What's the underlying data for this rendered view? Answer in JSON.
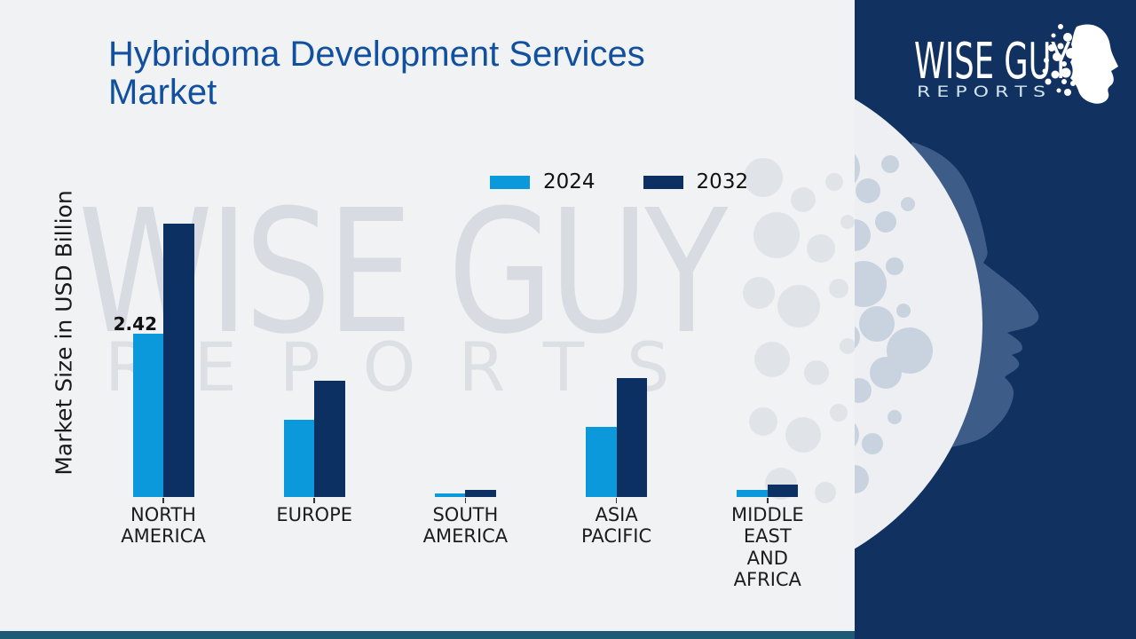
{
  "page": {
    "background": "#f1f2f3"
  },
  "chart_data": {
    "type": "bar",
    "title": "Hybridoma Development Services Market",
    "xlabel": "",
    "ylabel": "Market Size in USD Billion",
    "unit": "USD Billion",
    "categories": [
      "NORTH AMERICA",
      "EUROPE",
      "SOUTH AMERICA",
      "ASIA PACIFIC",
      "MIDDLE EAST AND AFRICA"
    ],
    "series": [
      {
        "name": "2024",
        "color": "#0c99dc",
        "values": [
          2.42,
          1.15,
          0.05,
          1.04,
          0.11
        ]
      },
      {
        "name": "2032",
        "color": "#0d3063",
        "values": [
          4.05,
          1.73,
          0.1,
          1.76,
          0.18
        ]
      }
    ],
    "data_labels": [
      {
        "series": "2024",
        "category": "NORTH AMERICA",
        "text": "2.42"
      }
    ],
    "legend_position": "top-center",
    "grid": false,
    "ylim": [
      0,
      4.3
    ]
  },
  "watermark": {
    "wordmark": "WISE GUY",
    "subtext": "REPORTS"
  },
  "brand": {
    "wordmark": "WISE GUY",
    "subtext": "R E P O R T S"
  },
  "colors": {
    "accent_2024": "#0c99dc",
    "accent_2032": "#0d3063",
    "title_blue": "#10509e",
    "panel_navy": "#113161",
    "footer_teal": "#1d5a75",
    "watermark_gray": "#d8dce2"
  }
}
